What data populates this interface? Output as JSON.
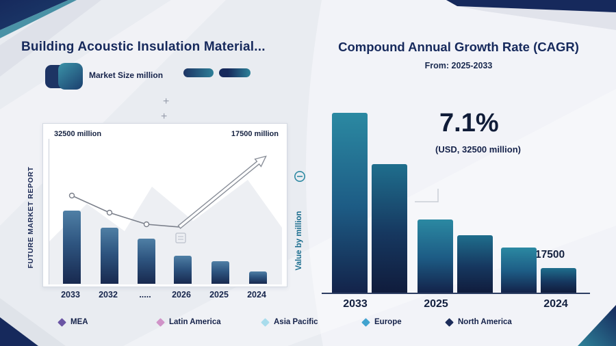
{
  "page": {
    "bg": "#e9ecf1",
    "accent_navy": "#16295c",
    "accent_teal": "#2e8299"
  },
  "left_panel": {
    "title": "Building Acoustic Insulation Material...",
    "legend_label": "Market Size million",
    "top_left_value": "32500 million",
    "top_right_value": "17500 million",
    "y_axis_label": "FUTURE MARKET REPORT"
  },
  "right_panel": {
    "title": "Compound Annual Growth Rate (CAGR)",
    "subtitle": "From: 2025-2033",
    "cagr_value": "7.1%",
    "cagr_detail": "(USD, 32500 million)",
    "y_axis_label": "Value by million",
    "bar_annotation": "17500"
  },
  "icons": {
    "plus": "+",
    "minus_circle": "minus-in-circle"
  },
  "bottom_legend": {
    "items": [
      {
        "label": "MEA",
        "color": "#6a55a4"
      },
      {
        "label": "Latin America",
        "color": "#d093c8"
      },
      {
        "label": "Asia Pacific",
        "color": "#a8dcec"
      },
      {
        "label": "Europe",
        "color": "#41a3cf"
      },
      {
        "label": "North America",
        "color": "#1c2c5a"
      }
    ]
  },
  "chart_data": [
    {
      "type": "bar",
      "title": "Building Acoustic Insulation Material - Market Size million",
      "categories": [
        "2033",
        "2032",
        ".....",
        "2026",
        "2025",
        "2024"
      ],
      "values": [
        32500,
        25000,
        20000,
        12500,
        10000,
        5500
      ],
      "ylabel": "FUTURE MARKET REPORT",
      "ylim": [
        0,
        32500
      ],
      "legend": [
        "Market Size million"
      ],
      "annotations": [
        "32500 million",
        "17500 million"
      ],
      "trend": {
        "type": "line-with-arrow",
        "note": "marker line declines across 2033-2026 then outlined arrow rises toward the 17500 million label"
      }
    },
    {
      "type": "bar",
      "title": "Compound Annual Growth Rate (CAGR)",
      "subtitle": "From: 2025-2033",
      "categories": [
        "2033",
        "2025",
        "2024"
      ],
      "series": [
        {
          "name": "primary",
          "values": [
            32500,
            13200,
            8200
          ]
        },
        {
          "name": "secondary",
          "values": [
            23200,
            10400,
            4500
          ]
        }
      ],
      "ylabel": "Value by million",
      "ylim": [
        0,
        32500
      ],
      "annotations": [
        "7.1%",
        "(USD, 32500 million)",
        "17500"
      ],
      "legend_position": "none"
    }
  ]
}
